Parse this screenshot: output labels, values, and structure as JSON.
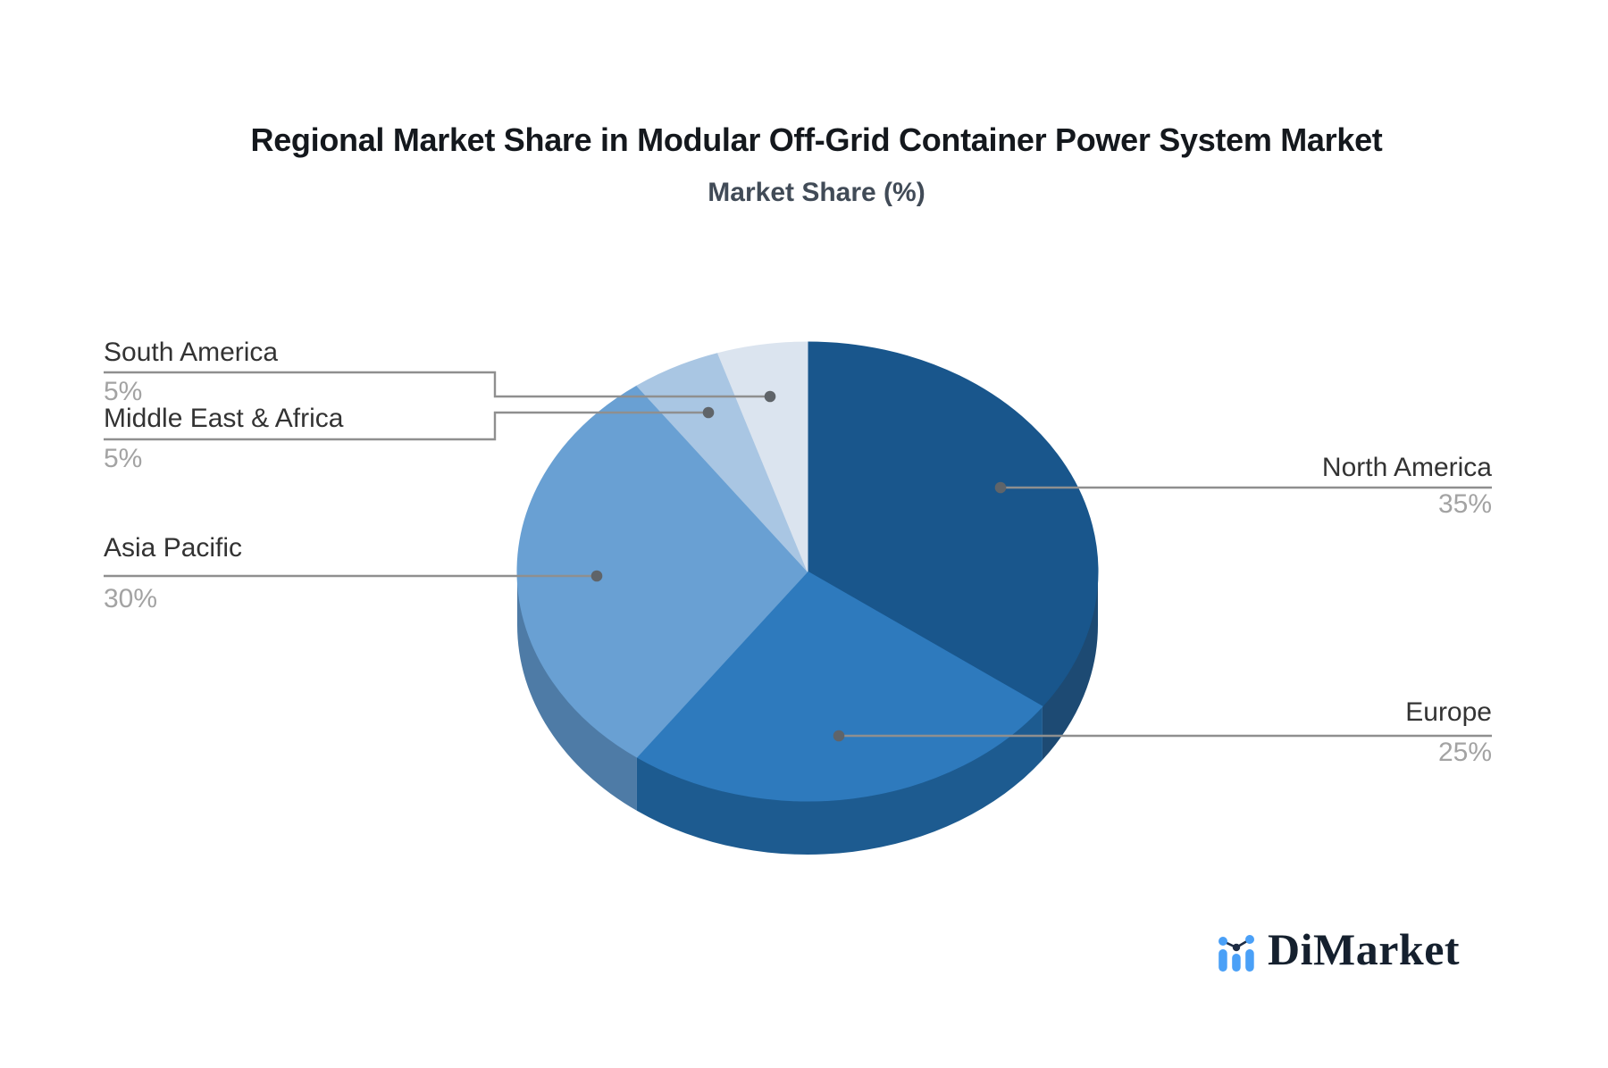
{
  "title": "Regional Market Share in Modular Off-Grid Container Power System Market",
  "subtitle": "Market Share (%)",
  "chart_data": {
    "type": "pie",
    "style": "3d",
    "unit": "%",
    "start_angle_deg": 0,
    "direction": "clockwise",
    "legend_position": "callouts",
    "labels": [
      "North America",
      "Europe",
      "Asia Pacific",
      "Middle East & Africa",
      "South America"
    ],
    "values": [
      35,
      25,
      30,
      5,
      5
    ],
    "percent_labels": [
      "35%",
      "25%",
      "30%",
      "5%",
      "5%"
    ],
    "colors": {
      "slices": [
        "#19568C",
        "#2E7ABD",
        "#69A0D3",
        "#A9C6E3",
        "#DBE4EF"
      ],
      "sides": [
        "#1D4A73",
        "#1D5B90",
        "#4E7BA6",
        "#8FB0CF",
        "#C2CEDD"
      ],
      "leader_line": "#8F8F8F",
      "leader_dot": "#5F6469",
      "label_text": "#333333",
      "percent_text": "#A3A3A3"
    }
  },
  "logo": {
    "text": "DiMarket",
    "accent_blue": "#4AA0F7",
    "dark_navy": "#1E2C44"
  }
}
